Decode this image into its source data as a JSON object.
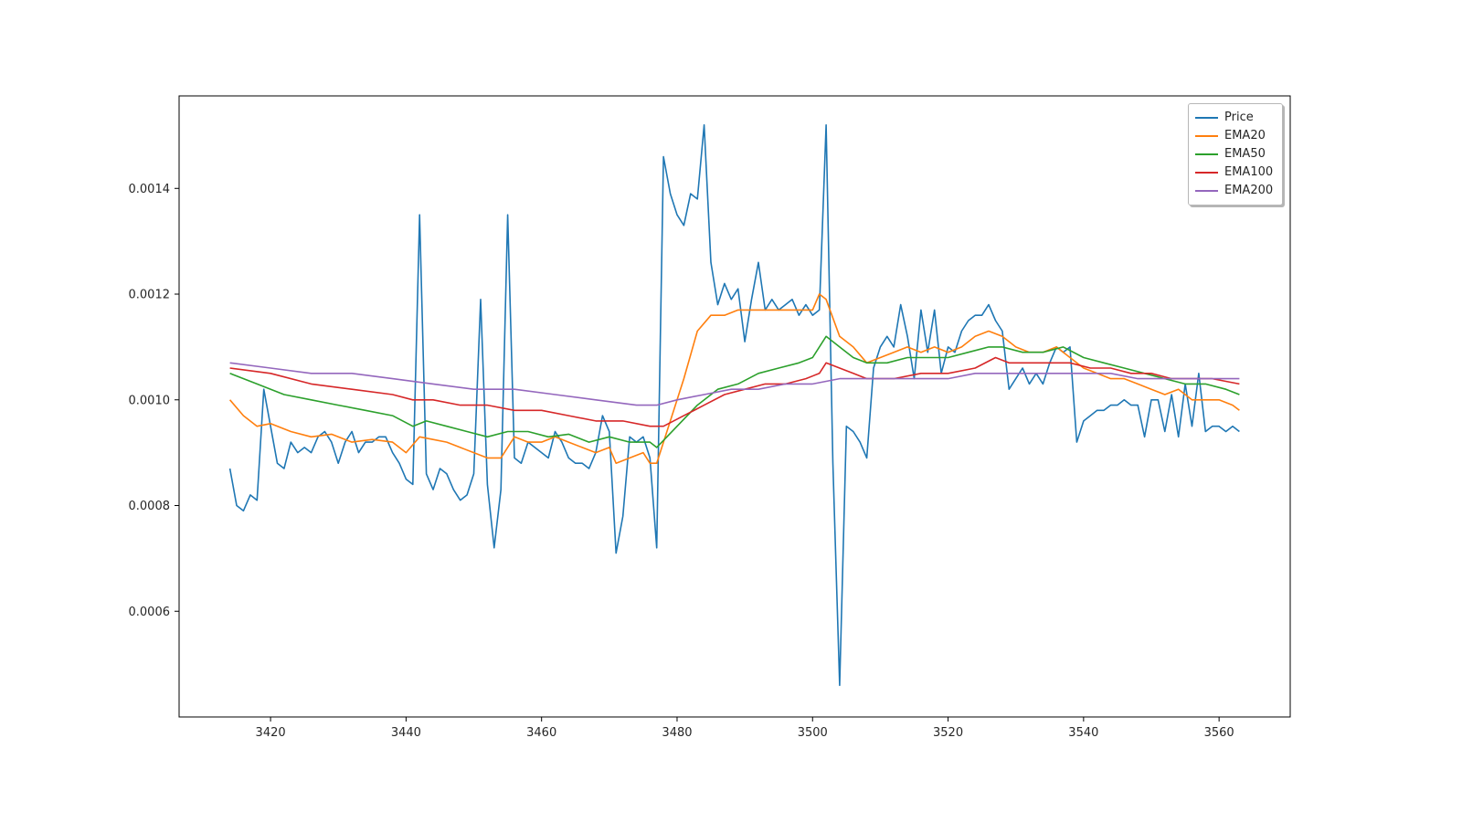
{
  "figure": {
    "background": "#ffffff",
    "axes_edge_color": "#000000",
    "text_color": "#262626"
  },
  "legend": {
    "position": "upper right",
    "entries": [
      "Price",
      "EMA20",
      "EMA50",
      "EMA100",
      "EMA200"
    ]
  },
  "chart_data": {
    "type": "line",
    "title": "",
    "xlabel": "",
    "ylabel": "",
    "xlim": [
      3406.5,
      3570.5
    ],
    "ylim": [
      0.0004,
      0.001575
    ],
    "grid": false,
    "legend_position": "upper right",
    "xticks": [
      {
        "value": 3420,
        "label": "3420"
      },
      {
        "value": 3440,
        "label": "3440"
      },
      {
        "value": 3460,
        "label": "3460"
      },
      {
        "value": 3480,
        "label": "3480"
      },
      {
        "value": 3500,
        "label": "3500"
      },
      {
        "value": 3520,
        "label": "3520"
      },
      {
        "value": 3540,
        "label": "3540"
      },
      {
        "value": 3560,
        "label": "3560"
      }
    ],
    "yticks": [
      {
        "value": 0.0006,
        "label": "0.0006"
      },
      {
        "value": 0.0008,
        "label": "0.0008"
      },
      {
        "value": 0.001,
        "label": "0.0010"
      },
      {
        "value": 0.0012,
        "label": "0.0012"
      },
      {
        "value": 0.0014,
        "label": "0.0014"
      }
    ],
    "series": [
      {
        "name": "Price",
        "color": "#1f77b4",
        "x_start": 3414,
        "x_step": 1,
        "y": [
          0.00087,
          0.0008,
          0.00079,
          0.00082,
          0.00081,
          0.00102,
          0.00095,
          0.00088,
          0.00087,
          0.00092,
          0.0009,
          0.00091,
          0.0009,
          0.00093,
          0.00094,
          0.00092,
          0.00088,
          0.00092,
          0.00094,
          0.0009,
          0.00092,
          0.00092,
          0.00093,
          0.00093,
          0.0009,
          0.00088,
          0.00085,
          0.00084,
          0.00135,
          0.00086,
          0.00083,
          0.00087,
          0.00086,
          0.00083,
          0.00081,
          0.00082,
          0.00086,
          0.00119,
          0.00084,
          0.00072,
          0.00083,
          0.00135,
          0.00089,
          0.00088,
          0.00092,
          0.00091,
          0.0009,
          0.00089,
          0.00094,
          0.00092,
          0.00089,
          0.00088,
          0.00088,
          0.00087,
          0.0009,
          0.00097,
          0.00094,
          0.00071,
          0.00078,
          0.00093,
          0.00092,
          0.00093,
          0.00089,
          0.00072,
          0.00146,
          0.00139,
          0.00135,
          0.00133,
          0.00139,
          0.00138,
          0.00152,
          0.00126,
          0.00118,
          0.00122,
          0.00119,
          0.00121,
          0.00111,
          0.00119,
          0.00126,
          0.00117,
          0.00119,
          0.00117,
          0.00118,
          0.00119,
          0.00116,
          0.00118,
          0.00116,
          0.00117,
          0.00152,
          0.00088,
          0.00046,
          0.00095,
          0.00094,
          0.00092,
          0.00089,
          0.00106,
          0.0011,
          0.00112,
          0.0011,
          0.00118,
          0.00112,
          0.00104,
          0.00117,
          0.00109,
          0.00117,
          0.00105,
          0.0011,
          0.00109,
          0.00113,
          0.00115,
          0.00116,
          0.00116,
          0.00118,
          0.00115,
          0.00113,
          0.00102,
          0.00104,
          0.00106,
          0.00103,
          0.00105,
          0.00103,
          0.00107,
          0.0011,
          0.00109,
          0.0011,
          0.00092,
          0.00096,
          0.00097,
          0.00098,
          0.00098,
          0.00099,
          0.00099,
          0.001,
          0.00099,
          0.00099,
          0.00093,
          0.001,
          0.001,
          0.00094,
          0.00101,
          0.00093,
          0.00103,
          0.00095,
          0.00105,
          0.00094,
          0.00095,
          0.00095,
          0.00094,
          0.00095,
          0.00094
        ]
      },
      {
        "name": "EMA20",
        "color": "#ff7f0e",
        "x": [
          3414,
          3416,
          3418,
          3420,
          3423,
          3426,
          3429,
          3432,
          3435,
          3438,
          3440,
          3442,
          3444,
          3446,
          3448,
          3450,
          3452,
          3454,
          3456,
          3458,
          3460,
          3462,
          3464,
          3466,
          3468,
          3470,
          3471,
          3473,
          3475,
          3476,
          3477,
          3479,
          3481,
          3483,
          3485,
          3487,
          3489,
          3492,
          3495,
          3498,
          3500,
          3501,
          3502,
          3504,
          3506,
          3508,
          3510,
          3512,
          3514,
          3516,
          3518,
          3520,
          3522,
          3524,
          3526,
          3528,
          3530,
          3532,
          3534,
          3536,
          3538,
          3540,
          3542,
          3544,
          3546,
          3548,
          3550,
          3552,
          3554,
          3556,
          3558,
          3560,
          3562,
          3563
        ],
        "y": [
          0.001,
          0.00097,
          0.00095,
          0.000955,
          0.00094,
          0.00093,
          0.000935,
          0.00092,
          0.000925,
          0.00092,
          0.0009,
          0.00093,
          0.000925,
          0.00092,
          0.00091,
          0.0009,
          0.00089,
          0.00089,
          0.00093,
          0.00092,
          0.00092,
          0.00093,
          0.00092,
          0.00091,
          0.0009,
          0.00091,
          0.00088,
          0.00089,
          0.0009,
          0.00088,
          0.00088,
          0.00096,
          0.00104,
          0.00113,
          0.00116,
          0.00116,
          0.00117,
          0.00117,
          0.00117,
          0.00117,
          0.00117,
          0.0012,
          0.00119,
          0.00112,
          0.0011,
          0.00107,
          0.00108,
          0.00109,
          0.0011,
          0.00109,
          0.0011,
          0.00109,
          0.0011,
          0.00112,
          0.00113,
          0.00112,
          0.0011,
          0.00109,
          0.00109,
          0.0011,
          0.00108,
          0.00106,
          0.00105,
          0.00104,
          0.00104,
          0.00103,
          0.00102,
          0.00101,
          0.00102,
          0.001,
          0.001,
          0.001,
          0.00099,
          0.00098
        ]
      },
      {
        "name": "EMA50",
        "color": "#2ca02c",
        "x": [
          3414,
          3418,
          3422,
          3426,
          3430,
          3434,
          3438,
          3441,
          3443,
          3446,
          3449,
          3452,
          3455,
          3458,
          3461,
          3464,
          3467,
          3470,
          3473,
          3476,
          3477,
          3480,
          3483,
          3486,
          3489,
          3492,
          3495,
          3498,
          3500,
          3502,
          3504,
          3506,
          3508,
          3511,
          3514,
          3517,
          3520,
          3523,
          3526,
          3528,
          3531,
          3534,
          3537,
          3540,
          3543,
          3546,
          3549,
          3552,
          3555,
          3558,
          3561,
          3563
        ],
        "y": [
          0.00105,
          0.00103,
          0.00101,
          0.001,
          0.00099,
          0.00098,
          0.00097,
          0.00095,
          0.00096,
          0.00095,
          0.00094,
          0.00093,
          0.00094,
          0.00094,
          0.00093,
          0.000935,
          0.00092,
          0.00093,
          0.00092,
          0.00092,
          0.00091,
          0.00095,
          0.00099,
          0.00102,
          0.00103,
          0.00105,
          0.00106,
          0.00107,
          0.00108,
          0.00112,
          0.0011,
          0.00108,
          0.00107,
          0.00107,
          0.00108,
          0.00108,
          0.00108,
          0.00109,
          0.0011,
          0.0011,
          0.00109,
          0.00109,
          0.0011,
          0.00108,
          0.00107,
          0.00106,
          0.00105,
          0.00104,
          0.00103,
          0.00103,
          0.00102,
          0.00101
        ]
      },
      {
        "name": "EMA100",
        "color": "#d62728",
        "x": [
          3414,
          3420,
          3426,
          3432,
          3438,
          3441,
          3444,
          3448,
          3452,
          3456,
          3460,
          3464,
          3468,
          3472,
          3476,
          3478,
          3481,
          3484,
          3487,
          3490,
          3493,
          3496,
          3499,
          3501,
          3502,
          3504,
          3506,
          3508,
          3512,
          3516,
          3520,
          3524,
          3527,
          3529,
          3532,
          3535,
          3538,
          3541,
          3544,
          3547,
          3550,
          3553,
          3556,
          3559,
          3563
        ],
        "y": [
          0.00106,
          0.00105,
          0.00103,
          0.00102,
          0.00101,
          0.001,
          0.001,
          0.00099,
          0.00099,
          0.00098,
          0.00098,
          0.00097,
          0.00096,
          0.00096,
          0.00095,
          0.00095,
          0.00097,
          0.00099,
          0.00101,
          0.00102,
          0.00103,
          0.00103,
          0.00104,
          0.00105,
          0.00107,
          0.00106,
          0.00105,
          0.00104,
          0.00104,
          0.00105,
          0.00105,
          0.00106,
          0.00108,
          0.00107,
          0.00107,
          0.00107,
          0.00107,
          0.00106,
          0.00106,
          0.00105,
          0.00105,
          0.00104,
          0.00104,
          0.00104,
          0.00103
        ]
      },
      {
        "name": "EMA200",
        "color": "#9467bd",
        "x": [
          3414,
          3420,
          3426,
          3432,
          3438,
          3444,
          3450,
          3456,
          3462,
          3468,
          3474,
          3477,
          3480,
          3484,
          3488,
          3492,
          3496,
          3500,
          3504,
          3508,
          3512,
          3516,
          3520,
          3524,
          3528,
          3532,
          3536,
          3540,
          3544,
          3548,
          3552,
          3556,
          3560,
          3563
        ],
        "y": [
          0.00107,
          0.00106,
          0.00105,
          0.00105,
          0.00104,
          0.00103,
          0.00102,
          0.00102,
          0.00101,
          0.001,
          0.00099,
          0.00099,
          0.001,
          0.00101,
          0.00102,
          0.00102,
          0.00103,
          0.00103,
          0.00104,
          0.00104,
          0.00104,
          0.00104,
          0.00104,
          0.00105,
          0.00105,
          0.00105,
          0.00105,
          0.00105,
          0.00105,
          0.00104,
          0.00104,
          0.00104,
          0.00104,
          0.00104
        ]
      }
    ]
  }
}
